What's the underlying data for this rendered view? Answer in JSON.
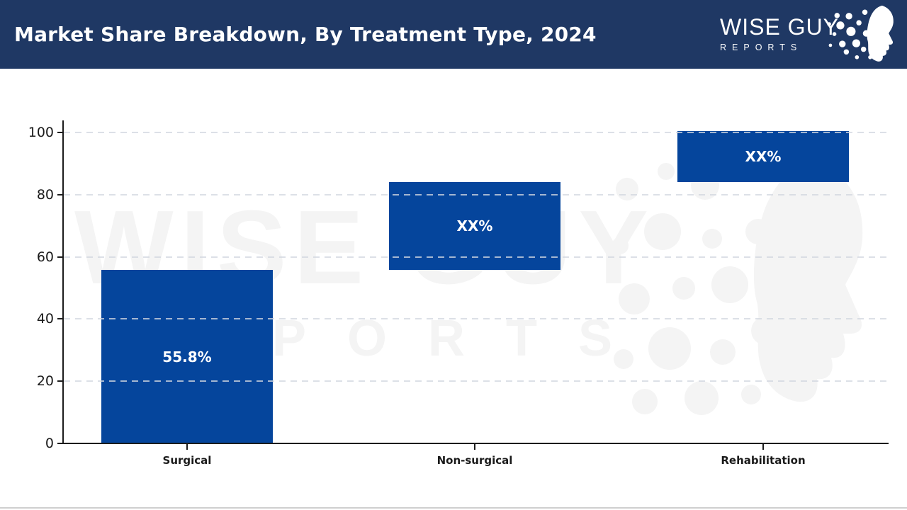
{
  "header": {
    "title": "Market Share Breakdown, By Treatment Type, 2024",
    "logo": {
      "line1": "WISE GUY",
      "line2": "REPORTS"
    }
  },
  "watermark": {
    "line1": "WISE GUY",
    "line2": "REPORTS"
  },
  "colors": {
    "header_bg": "#1f3864",
    "bar": "#05459c",
    "axis": "#1c1c1c",
    "gridline": "#dcdcdc",
    "watermark": "#f4f4f4",
    "bar_label": "#ffffff",
    "footer_line": "#cfcfcf"
  },
  "chart_data": {
    "type": "bar",
    "subtype": "stacked-waterfall",
    "title": "Market Share Breakdown, By Treatment Type, 2024",
    "xlabel": "",
    "ylabel": "",
    "categories": [
      "Surgical",
      "Non-surgical",
      "Rehabilitation"
    ],
    "segments": [
      {
        "category": "Surgical",
        "start": 0,
        "end": 55.8,
        "label": "55.8%"
      },
      {
        "category": "Non-surgical",
        "start": 55.8,
        "end": 84.0,
        "label": "XX%"
      },
      {
        "category": "Rehabilitation",
        "start": 84.0,
        "end": 100.5,
        "label": "XX%"
      }
    ],
    "yticks": [
      0,
      20,
      40,
      60,
      80,
      100
    ],
    "ylim": [
      0,
      104
    ],
    "grid": "dashed-horizontal",
    "legend": "none",
    "bar_color": "#05459c",
    "value_label_color": "#ffffff"
  }
}
